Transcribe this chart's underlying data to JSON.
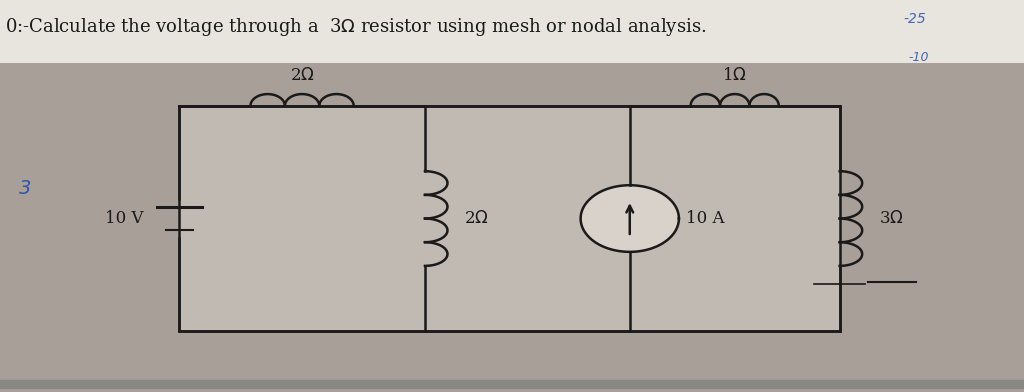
{
  "title": "0:-Calculate the voltage through a  3Ω resistor using mesh or nodal analysis.",
  "superscript1": "-25",
  "superscript2": "-10",
  "bg_color": "#a8a098",
  "line_color": "#1a1a1a",
  "xL": 0.175,
  "xM1": 0.415,
  "xM2": 0.615,
  "xR": 0.82,
  "yT": 0.73,
  "yB": 0.155,
  "resistor_bumps": 3,
  "resistor_amp": 0.032,
  "v_resistor_bumps": 4,
  "v_resistor_amp": 0.022
}
